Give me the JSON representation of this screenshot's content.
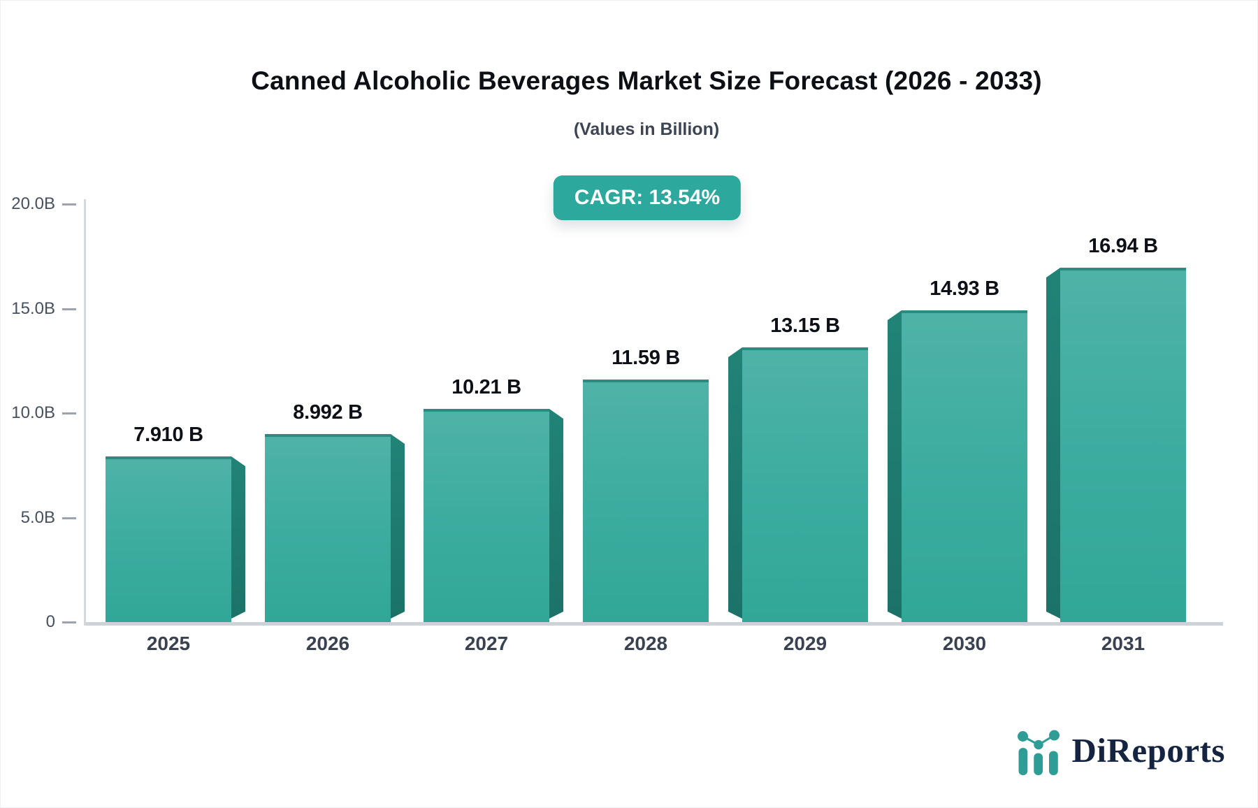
{
  "chart_data": {
    "type": "bar",
    "title": "Canned Alcoholic Beverages Market Size Forecast (2026 - 2033)",
    "subtitle": "(Values in Billion)",
    "annotation": "CAGR: 13.54%",
    "categories": [
      "2025",
      "2026",
      "2027",
      "2028",
      "2029",
      "2030",
      "2031"
    ],
    "values": [
      7.91,
      8.992,
      10.21,
      11.59,
      13.15,
      14.93,
      16.94
    ],
    "labels": [
      "7.910 B",
      "8.992 B",
      "10.21 B",
      "11.59 B",
      "13.15 B",
      "14.93 B",
      "16.94 B"
    ],
    "y_ticks": [
      {
        "label": "20.0B",
        "value": 20
      },
      {
        "label": "15.0B",
        "value": 15
      },
      {
        "label": "10.0B",
        "value": 10
      },
      {
        "label": "5.0B",
        "value": 5
      },
      {
        "label": "0",
        "value": 0
      }
    ],
    "ylim": [
      0,
      20
    ],
    "legend": "none",
    "grid": "off",
    "colors": {
      "bar_top": "#4fb2a8",
      "bar_bottom": "#31a797",
      "bar_side": "#1f7a6f",
      "bar_top_edge": "#2b8b80",
      "accent_badge": "#2ca89d",
      "axis_line": "#d4d8dd",
      "logo_navy": "#152441",
      "logo_teal": "#2d9d95"
    }
  },
  "footer": {
    "logo_text": "DiReports"
  }
}
